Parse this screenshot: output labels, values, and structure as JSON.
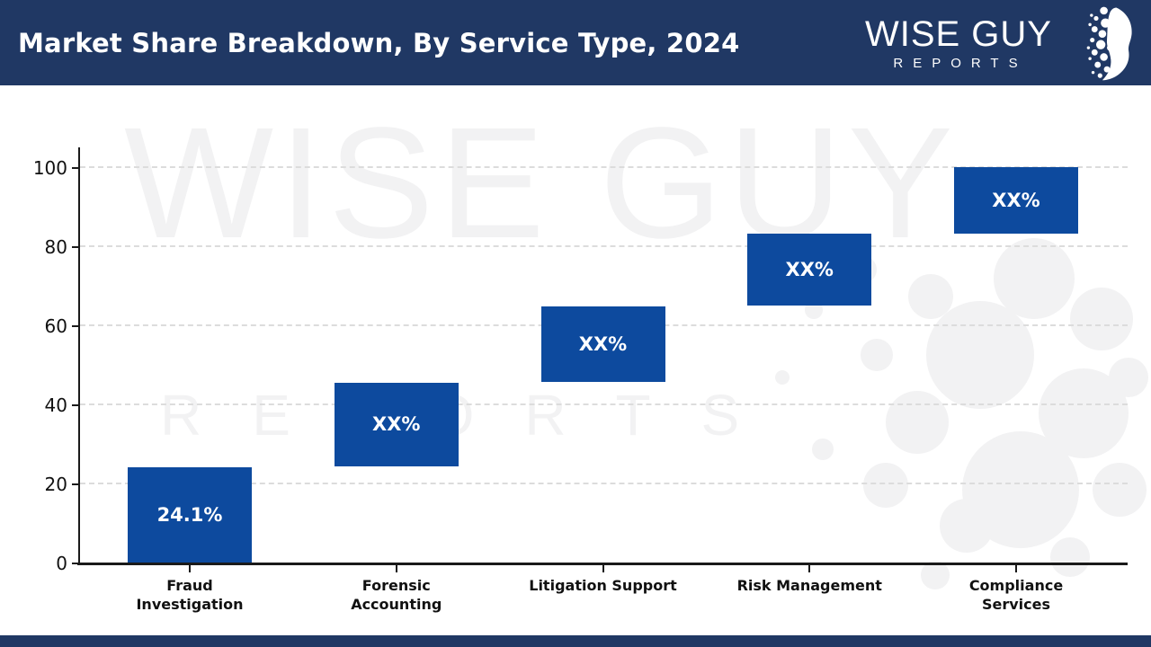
{
  "header": {
    "title": "Market Share Breakdown, By Service Type, 2024",
    "logo": {
      "wordmark": "WISE GUY",
      "subtitle": "REPORTS"
    }
  },
  "watermark": {
    "wordmark": "WISE GUY",
    "subtitle": "REPORTS"
  },
  "chart_data": {
    "type": "bar",
    "variant": "waterfall (floating cumulative segments)",
    "title": "Market Share Breakdown, By Service Type, 2024",
    "xlabel": "",
    "ylabel": "",
    "ylim": [
      0,
      106
    ],
    "y_ticks": [
      0,
      20,
      40,
      60,
      80,
      100
    ],
    "grid": "horizontal dashed lines at 20,40,60,80,100",
    "legend": "none",
    "bar_color": "#0d4a9e",
    "bar_label_color": "#ffffff",
    "categories": [
      "Fraud\nInvestigation",
      "Forensic\nAccounting",
      "Litigation Support",
      "Risk Management",
      "Compliance\nServices"
    ],
    "segments": [
      {
        "name": "Fraud Investigation",
        "start": 0,
        "end": 24.1,
        "label": "24.1%"
      },
      {
        "name": "Forensic Accounting",
        "start": 24.3,
        "end": 45.5,
        "label": "XX%"
      },
      {
        "name": "Litigation Support",
        "start": 45.7,
        "end": 64.8,
        "label": "XX%"
      },
      {
        "name": "Risk Management",
        "start": 65.0,
        "end": 83.2,
        "label": "XX%"
      },
      {
        "name": "Compliance Services",
        "start": 83.2,
        "end": 100.0,
        "label": "XX%"
      }
    ]
  },
  "colors": {
    "header_bg": "#203864",
    "footer_bg": "#203864",
    "bar": "#0d4a9e",
    "grid": "#dcdcdc",
    "axis": "#1a1a1a",
    "watermark": "#f2f2f3"
  }
}
